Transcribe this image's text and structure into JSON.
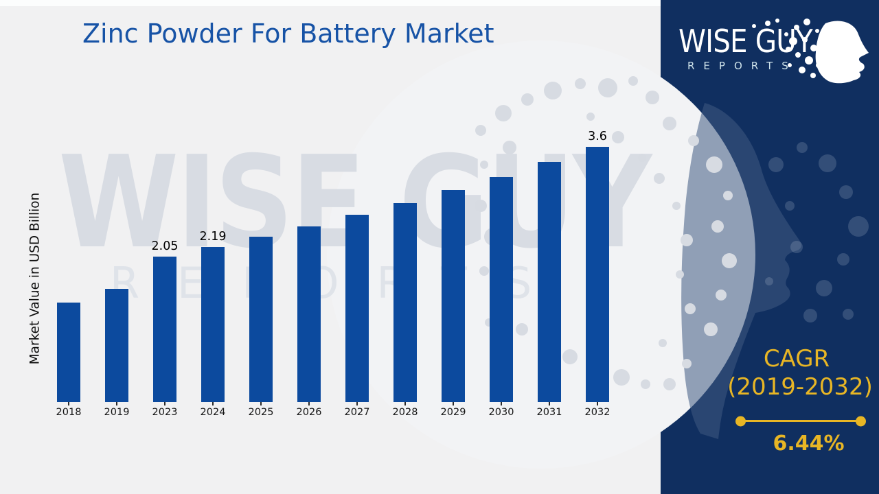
{
  "title": "Zinc Powder For Battery Market",
  "brand": {
    "logo_line1": "WISE GUY",
    "logo_line2": "REPORTS",
    "watermark_line1": "WISE GUY",
    "watermark_line2": "REPORTS"
  },
  "panel": {
    "cagr_label": "CAGR",
    "cagr_period": "(2019-2032)",
    "cagr_value": "6.44%"
  },
  "colors": {
    "panel_navy": "#102f60",
    "bar_blue": "#0c4a9e",
    "title_blue": "#1753a6",
    "accent_gold": "#e8b625",
    "footer_teal": "#205f7d",
    "bg_gray": "#f1f1f2",
    "watermark_gray": "#d8dce3"
  },
  "chart_data": {
    "type": "bar",
    "title": "Zinc Powder For Battery Market",
    "xlabel": "",
    "ylabel": "Market Value in USD Billion",
    "categories": [
      "2018",
      "2019",
      "2023",
      "2024",
      "2025",
      "2026",
      "2027",
      "2028",
      "2029",
      "2030",
      "2031",
      "2032"
    ],
    "values": [
      1.4,
      1.6,
      2.05,
      2.19,
      2.33,
      2.48,
      2.64,
      2.81,
      2.99,
      3.18,
      3.39,
      3.6
    ],
    "data_labels": [
      "",
      "",
      "2.05",
      "2.19",
      "",
      "",
      "",
      "",
      "",
      "",
      "",
      "3.6"
    ],
    "bar_color": "#0c4a9e",
    "ylim": [
      0,
      3.85
    ],
    "grid": false,
    "legend": null,
    "units": "USD Billion"
  }
}
